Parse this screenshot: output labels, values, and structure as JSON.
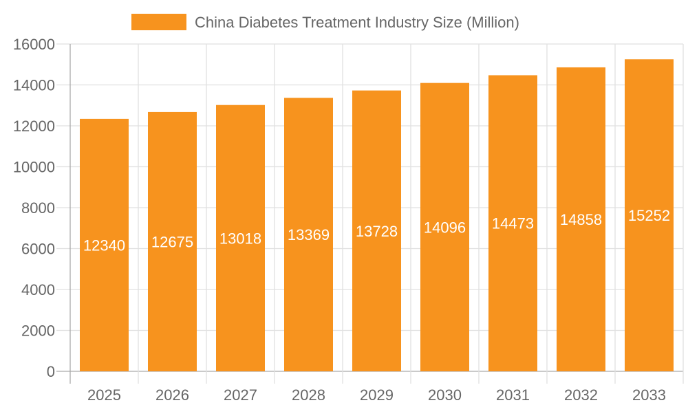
{
  "chart_data": {
    "type": "bar",
    "title": "",
    "legend": {
      "label": "China Diabetes Treatment Industry Size (Million)",
      "placement": "top-center"
    },
    "categories": [
      "2025",
      "2026",
      "2027",
      "2028",
      "2029",
      "2030",
      "2031",
      "2032",
      "2033"
    ],
    "series": [
      {
        "name": "China Diabetes Treatment Industry Size (Million)",
        "values": [
          12340,
          12675,
          13018,
          13369,
          13728,
          14096,
          14473,
          14858,
          15252
        ],
        "color": "#f7931e"
      }
    ],
    "ylim": [
      0,
      16000
    ],
    "yticks": [
      0,
      2000,
      4000,
      6000,
      8000,
      10000,
      12000,
      14000,
      16000
    ],
    "grid": true,
    "xlabel": "",
    "ylabel": "",
    "data_labels": true
  }
}
